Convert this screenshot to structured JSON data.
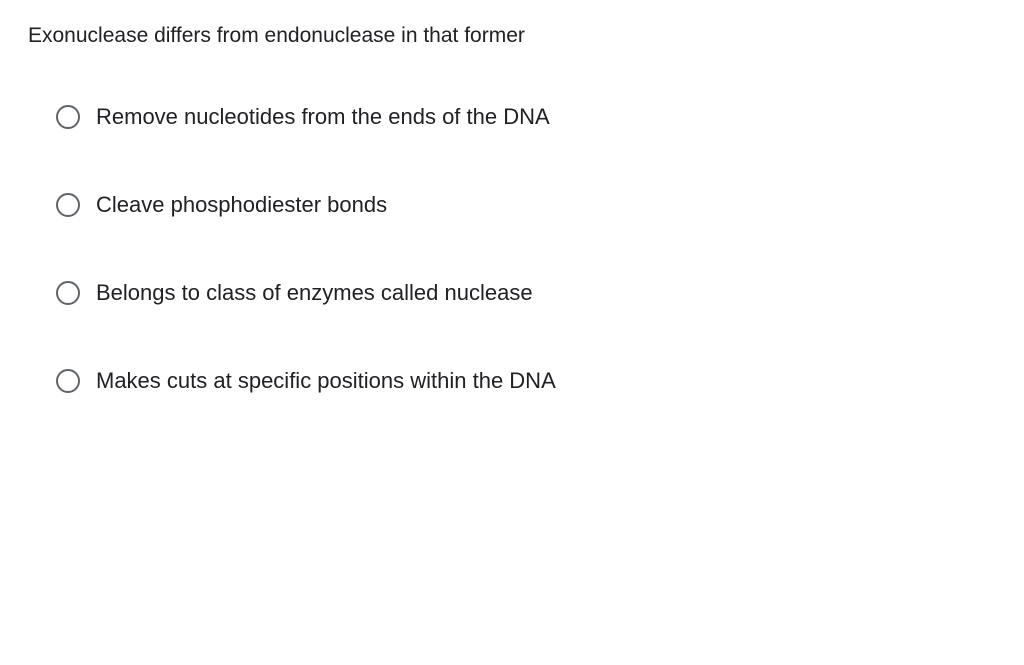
{
  "question": {
    "text": "Exonuclease differs from endonuclease in that former",
    "fontsize": 21,
    "color": "#202124"
  },
  "options": [
    {
      "label": "Remove nucleotides from the ends of the DNA",
      "selected": false
    },
    {
      "label": "Cleave phosphodiester bonds",
      "selected": false
    },
    {
      "label": "Belongs to class of enzymes called nuclease",
      "selected": false
    },
    {
      "label": "Makes cuts at specific positions within the DNA",
      "selected": false
    }
  ],
  "styling": {
    "background_color": "#ffffff",
    "question_color": "#202124",
    "option_color": "#202124",
    "radio_border_color": "#5f6368",
    "radio_size": 24,
    "option_fontsize": 22,
    "option_gap": 62,
    "options_indent": 28
  }
}
